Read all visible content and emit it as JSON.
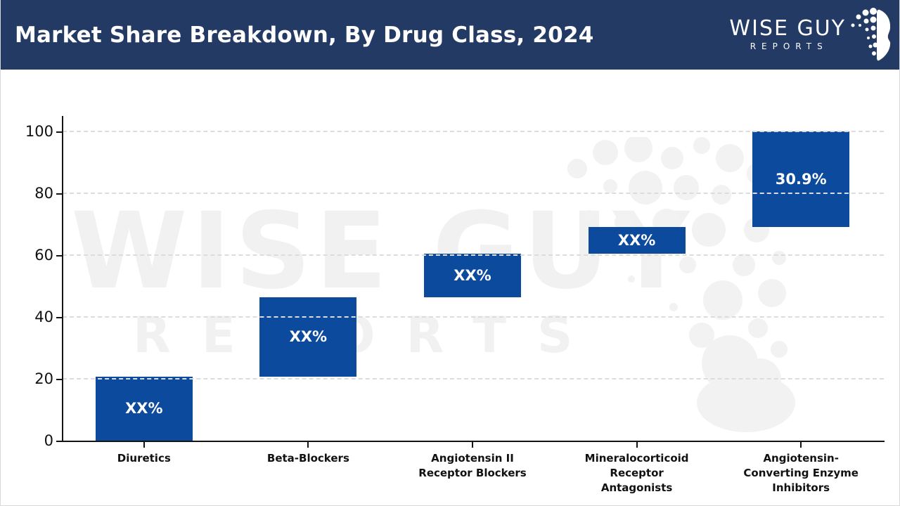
{
  "header": {
    "title": "Market Share Breakdown, By Drug Class, 2024",
    "logo": {
      "wordmark": "WISE GUY",
      "reports": "REPORTS"
    }
  },
  "watermark": {
    "wordmark": "WISE GUY",
    "reports": "REPORTS"
  },
  "chart_data": {
    "type": "bar",
    "subtype": "waterfall",
    "title": "Market Share Breakdown, By Drug Class, 2024",
    "xlabel": "",
    "ylabel": "",
    "ylim": [
      0,
      100
    ],
    "yticks": [
      0,
      20,
      40,
      60,
      80,
      100
    ],
    "grid": {
      "horizontal": true,
      "style": "dashed",
      "color": "#dcdcdc"
    },
    "legend": "none",
    "bar_color": "#0C4A9E",
    "categories": [
      "Diuretics",
      "Beta-Blockers",
      "Angiotensin II Receptor Blockers",
      "Mineralocorticoid Receptor Antagonists",
      "Angiotensin-Converting Enzyme Inhibitors"
    ],
    "category_lines": [
      [
        "Diuretics"
      ],
      [
        "Beta-Blockers"
      ],
      [
        "Angiotensin II",
        "Receptor Blockers"
      ],
      [
        "Mineralocorticoid",
        "Receptor",
        "Antagonists"
      ],
      [
        "Angiotensin-",
        "Converting Enzyme",
        "Inhibitors"
      ]
    ],
    "segments": [
      {
        "category": "Diuretics",
        "start": 0,
        "end": 20.7,
        "label": "XX%"
      },
      {
        "category": "Beta-Blockers",
        "start": 20.7,
        "end": 46.4,
        "label": "XX%"
      },
      {
        "category": "Angiotensin II Receptor Blockers",
        "start": 46.4,
        "end": 60.4,
        "label": "XX%"
      },
      {
        "category": "Mineralocorticoid Receptor Antagonists",
        "start": 60.4,
        "end": 69.1,
        "label": "XX%"
      },
      {
        "category": "Angiotensin-Converting Enzyme Inhibitors",
        "start": 69.1,
        "end": 100,
        "label": "30.9%"
      }
    ],
    "values_estimated": [
      20.7,
      25.7,
      14.0,
      8.7,
      30.9
    ]
  }
}
